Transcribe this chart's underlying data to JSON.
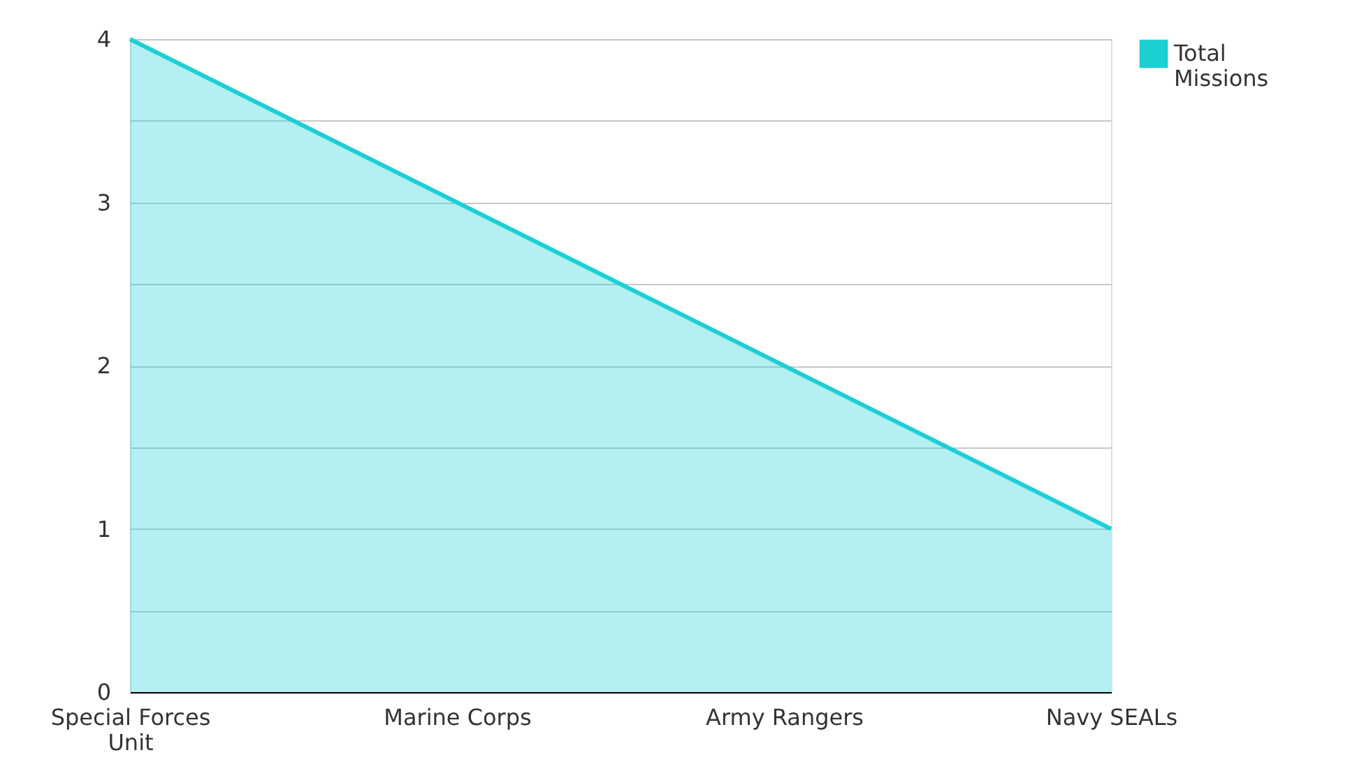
{
  "chart_data": {
    "type": "area",
    "categories": [
      "Special Forces Unit",
      "Marine Corps",
      "Army Rangers",
      "Navy SEALs"
    ],
    "series": [
      {
        "name": "Total Missions",
        "color": "#1ccfd3",
        "values": [
          4,
          3,
          2,
          1
        ]
      }
    ],
    "ylim": [
      0,
      4
    ],
    "yticks": [
      0,
      {
        "value": 0.5,
        "label": null
      },
      1,
      {
        "value": 1.5,
        "label": null
      },
      2,
      {
        "value": 2.5,
        "label": null
      },
      3,
      {
        "value": 3.5,
        "label": null
      },
      4
    ],
    "grid": "y",
    "legend": "top right"
  }
}
